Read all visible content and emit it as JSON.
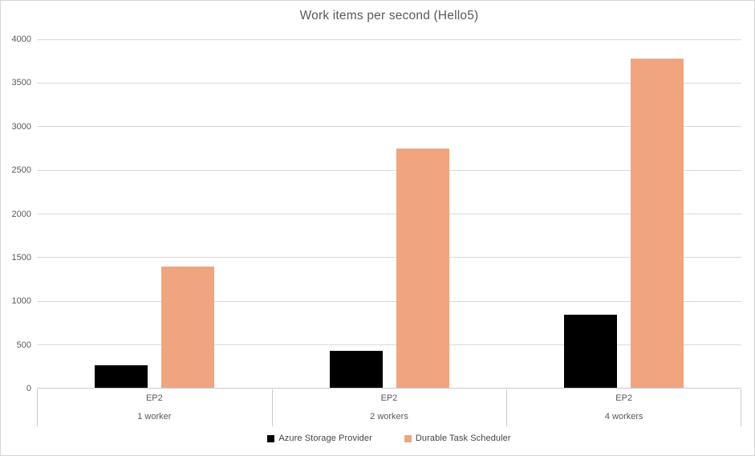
{
  "chart_data": {
    "type": "bar",
    "title": "Work items per second (Hello5)",
    "categories": [
      {
        "primary": "EP2",
        "secondary": "1 worker"
      },
      {
        "primary": "EP2",
        "secondary": "2 workers"
      },
      {
        "primary": "EP2",
        "secondary": "4 workers"
      }
    ],
    "series": [
      {
        "name": "Azure Storage Provider",
        "color": "#000000",
        "values": [
          260,
          420,
          840
        ]
      },
      {
        "name": "Durable Task Scheduler",
        "color": "#f1a57e",
        "values": [
          1390,
          2740,
          3770
        ]
      }
    ],
    "ylim": [
      0,
      4000
    ],
    "yticks": [
      0,
      500,
      1000,
      1500,
      2000,
      2500,
      3000,
      3500,
      4000
    ],
    "xlabel": "",
    "ylabel": "",
    "grid": true,
    "legend_position": "bottom"
  },
  "colors": {
    "background": "#ffffff",
    "border": "#d7d7d7",
    "gridline": "#d9d9d9",
    "axis_line": "#c9c9c9",
    "text": "#595959",
    "legend_text": "#444444"
  }
}
